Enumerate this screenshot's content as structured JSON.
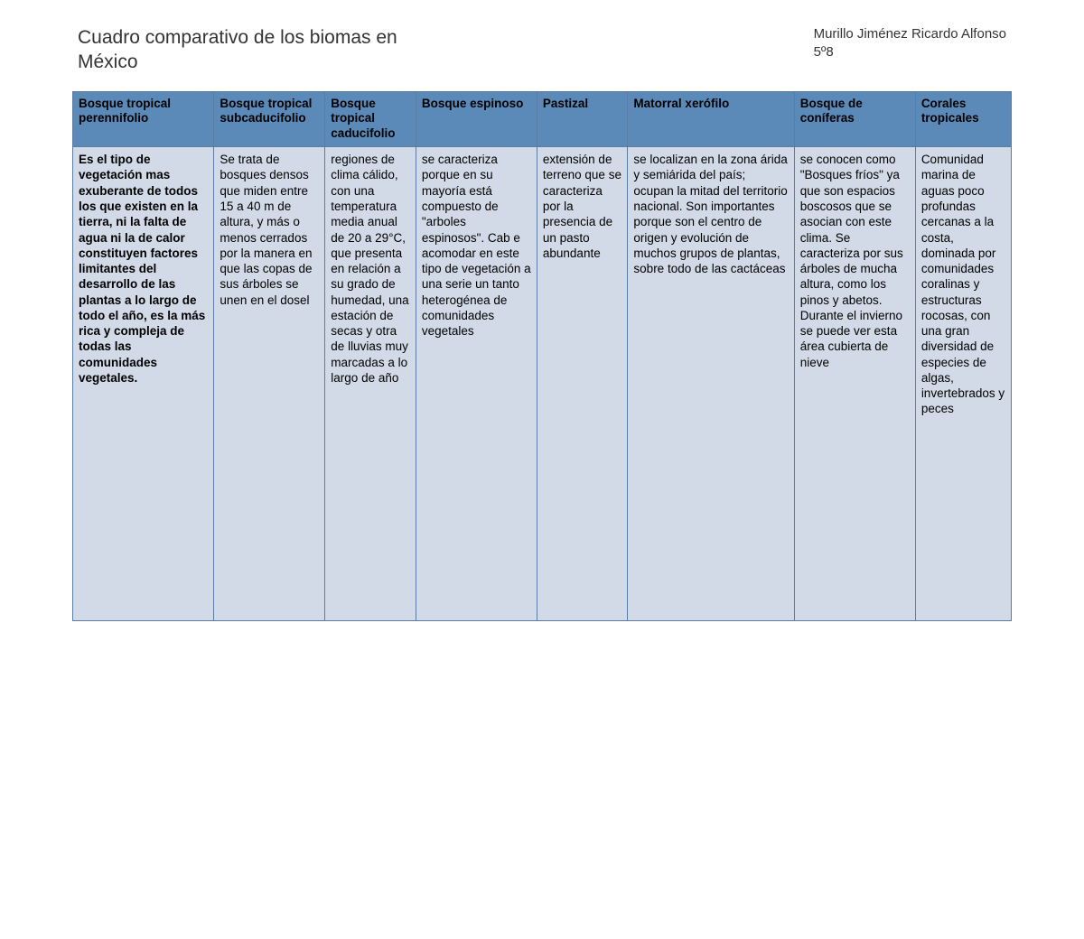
{
  "header": {
    "title": "Cuadro comparativo de los biomas en México",
    "student_name": "Murillo Jiménez Ricardo Alfonso",
    "student_group": "5º8"
  },
  "table": {
    "colors": {
      "header_bg": "#5b89b8",
      "cell_bg": "#d1dae6",
      "border": "#5b7ca3",
      "text": "#000000"
    },
    "column_widths_pct": [
      14,
      11,
      9,
      12,
      9,
      16.5,
      12,
      9.5
    ],
    "columns": [
      "Bosque tropical perennifolio",
      "Bosque tropical subcaducifolio",
      "Bosque tropical caducifolio",
      "Bosque espinoso",
      "Pastizal",
      "Matorral xerófilo",
      "Bosque de coníferas",
      "Corales tropicales"
    ],
    "row_bold": [
      true,
      false,
      false,
      false,
      false,
      false,
      false,
      false
    ],
    "row": [
      "Es el tipo de vegetación mas exuberante de todos los que existen en la tierra, ni la falta de agua ni la de calor constituyen factores limitantes del desarrollo de las plantas a lo largo de todo el año, es la más rica y compleja de todas las comunidades vegetales.",
      "Se trata de bosques densos que miden entre 15 a 40 m de altura, y más o menos cerrados por la manera en que las copas de sus árboles se unen en el dosel",
      "regiones de clima cálido, con una temperatura media anual de 20 a 29°C, que presenta en relación a su grado de humedad, una estación de secas y otra de lluvias muy marcadas a lo largo de año",
      "se caracteriza porque en su mayoría está compuesto de \"arboles espinosos\". Cab e acomodar en este tipo de vegetación a una serie un tanto heterogénea de comunidades vegetales",
      "extensión de terreno que se caracteriza por la presencia de un pasto abundante",
      "se localizan en la zona árida y semiárida del país; ocupan la mitad del territorio nacional. Son importantes porque son el centro de origen y evolución de muchos grupos de plantas, sobre todo de las cactáceas",
      "se conocen como \"Bosques fríos\" ya que son espacios boscosos que se asocian con este clima. Se caracteriza por sus árboles de mucha altura, como los pinos y abetos. Durante el invierno se puede ver esta área cubierta de nieve",
      "Comunidad marina de aguas poco profundas cercanas a la costa, dominada por comunidades coralinas y estructuras rocosas, con una gran diversidad de especies de algas, invertebrados y peces"
    ]
  }
}
